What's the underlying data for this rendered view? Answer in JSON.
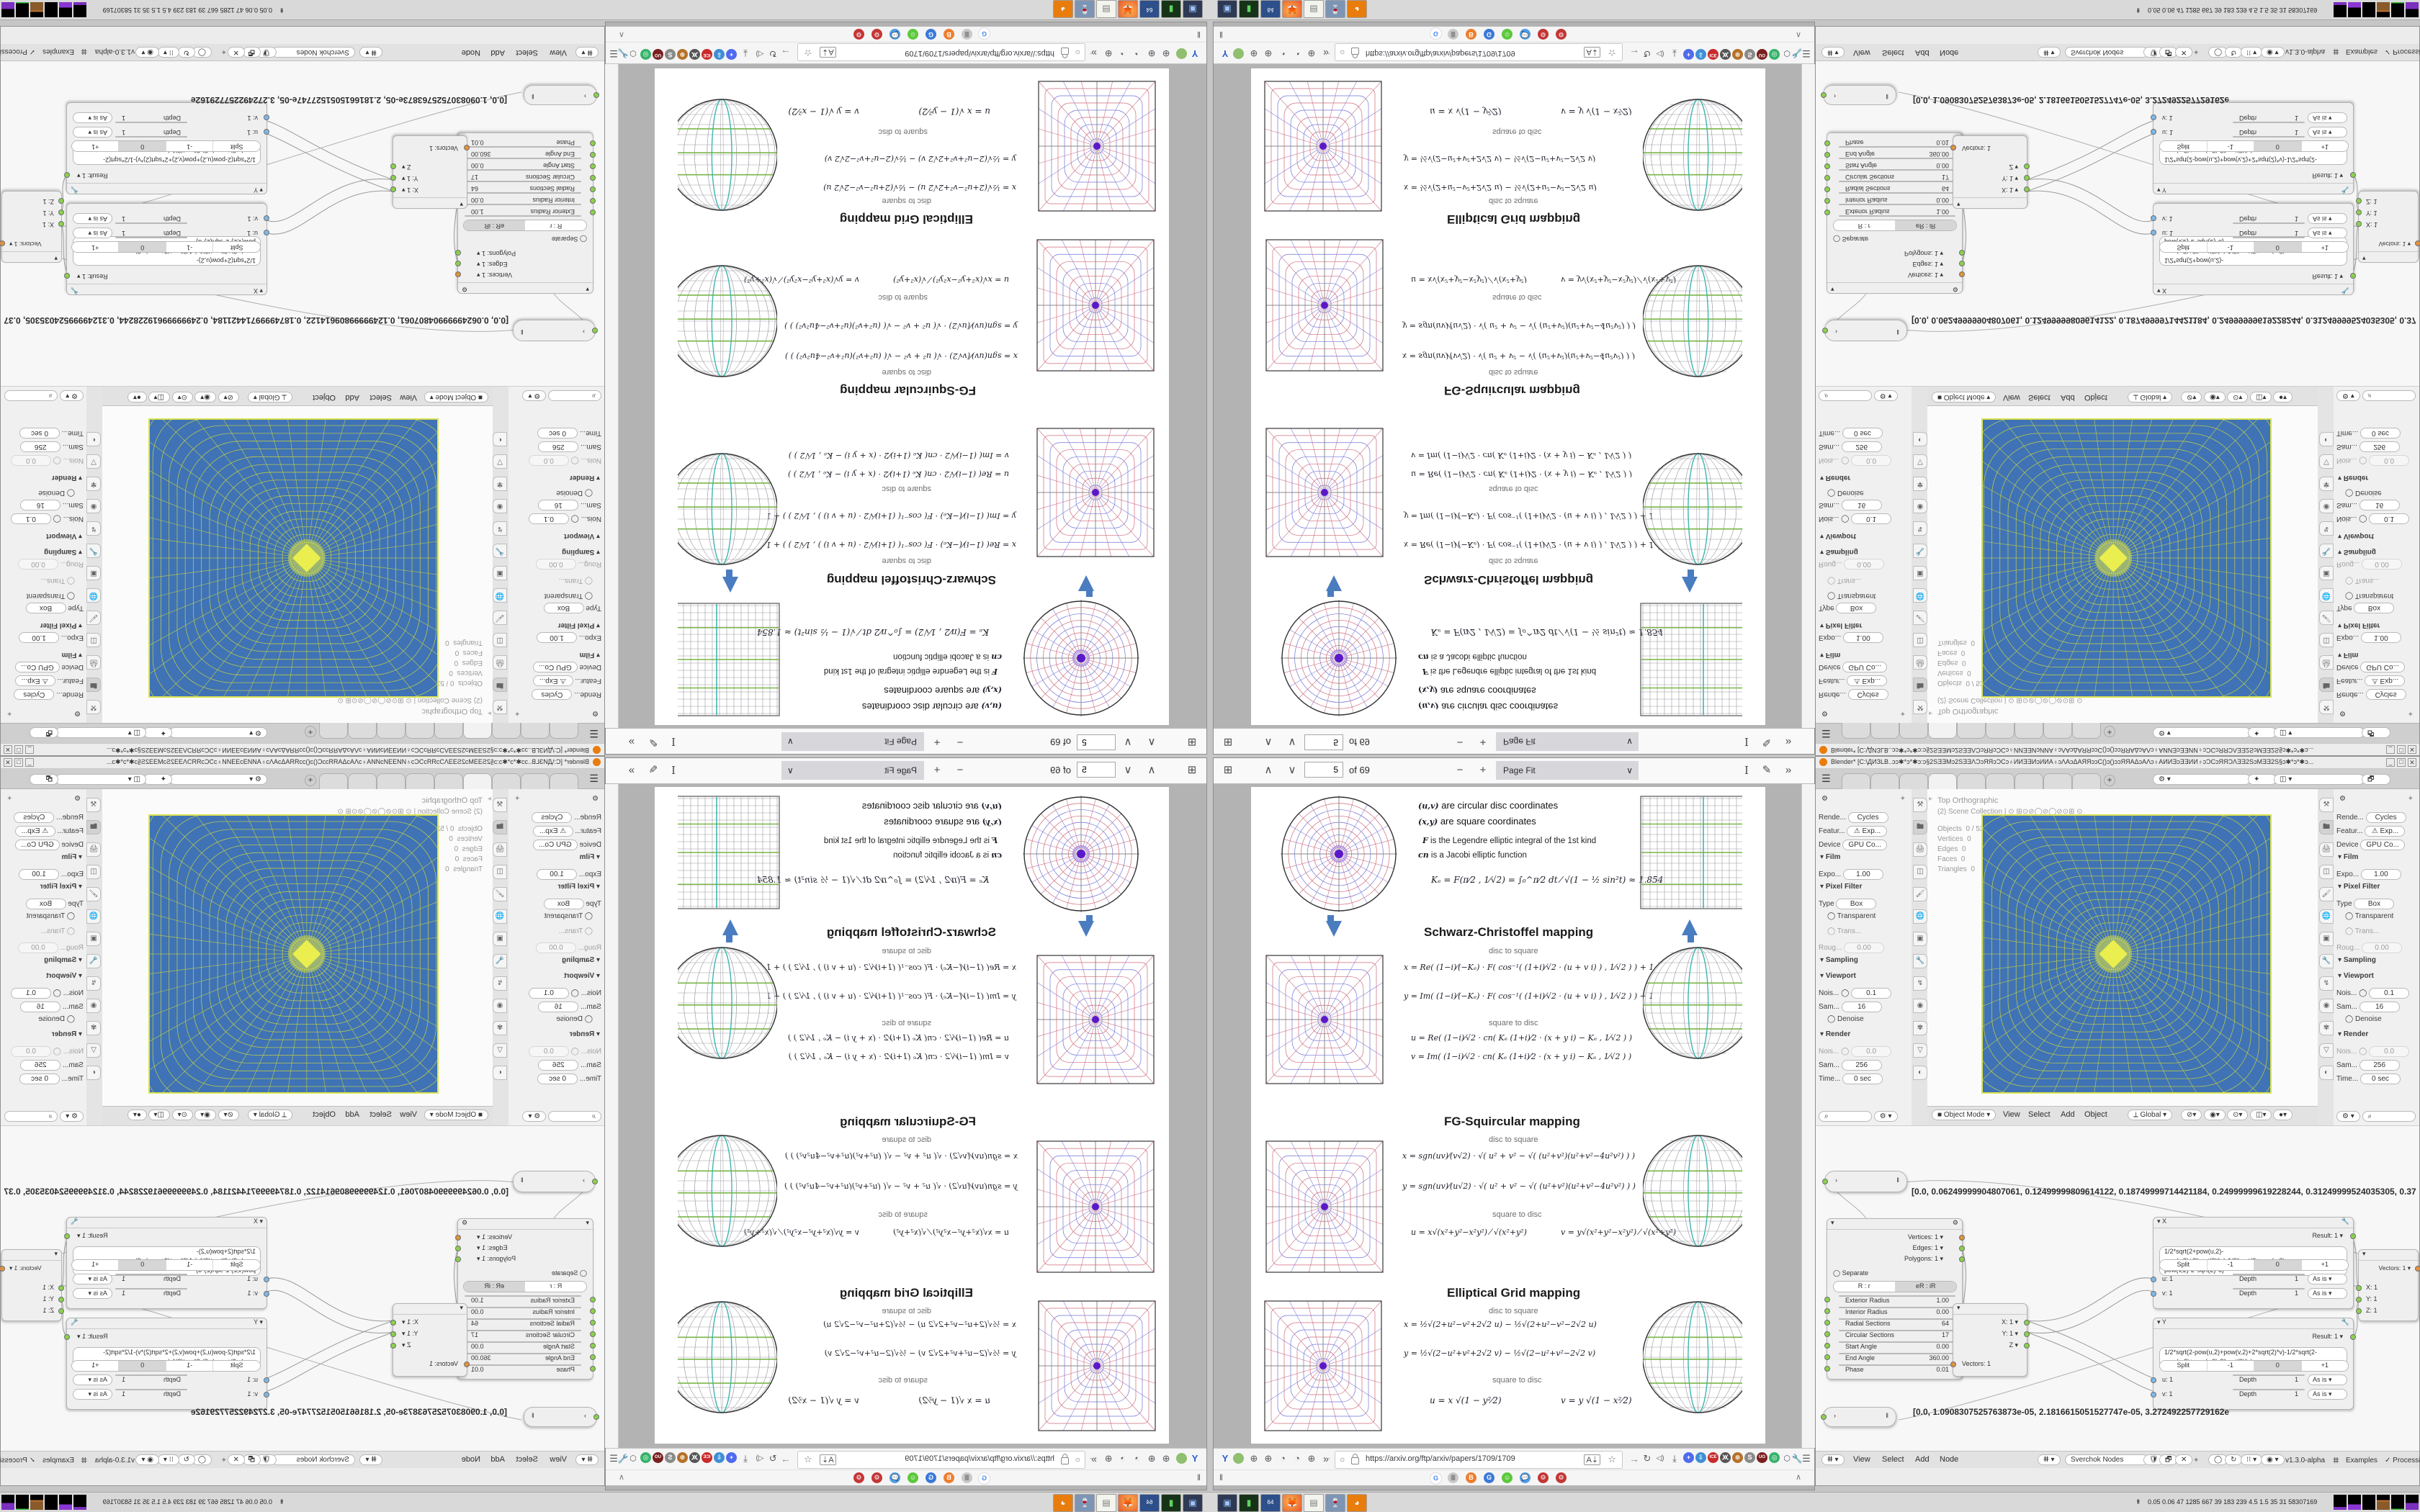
{
  "glyphs": {
    "chev_up": "∧",
    "chev_down": "∨",
    "chev_sm": "▾",
    "minus": "−",
    "plus": "+",
    "dbl_right": "»",
    "back": "←",
    "fwd": "→",
    "reload": "↻",
    "menu": "☰",
    "pause": "‖",
    "play": "›",
    "check": "✓",
    "close": "✕",
    "pin": "✦",
    "gear": "⚙",
    "collapse": "▾",
    "expand": "▸",
    "sidebar": "⊞",
    "cursor": "I",
    "pencil": "✎",
    "speaker": "◁)",
    "down": "⤓",
    "star": "☆",
    "shield": "○",
    "up_small": "∧"
  },
  "pdf": {
    "toolbar": {
      "page_value": "5",
      "of_label": "of 69",
      "zoom_value": "Page Fit"
    },
    "intro": {
      "b1": "(u,v)",
      "t1": " are circular disc coordinates",
      "b2": "(x,y)",
      "t2": " are square coordinates",
      "b3": "F",
      "t3": " is the Legendre elliptic integral of the 1st kind",
      "b4": "cn",
      "t4": " is a Jacobi elliptic function",
      "ke": "Kₑ =  F(π⁄2 , 1⁄√2) = ∫₀^π⁄2  dt ⁄ √(1 − ½ sin²t)   ≈ 1.854"
    },
    "sections": {
      "s1": {
        "title": "Schwarz-Christoffel mapping",
        "sub1": "disc to square",
        "f1": "x = Re( (1−i)⁄(−Kₑ) · F( cos⁻¹( (1+i)⁄√2 · (u + v i) ) , 1⁄√2 ) ) + 1",
        "f2": "y = Im( (1−i)⁄(−Kₑ) · F( cos⁻¹( (1+i)⁄√2 · (u + v i) ) , 1⁄√2 ) ) − 1",
        "sub2": "square to disc",
        "f3": "u = Re( (1−i)⁄√2 · cn( Kₑ (1+i)⁄2 · (x + y i) − Kₑ , 1⁄√2 ) )",
        "f4": "v = Im( (1−i)⁄√2 · cn( Kₑ (1+i)⁄2 · (x + y i) − Kₑ , 1⁄√2 ) )"
      },
      "s2": {
        "title": "FG-Squircular mapping",
        "sub1": "disc to square",
        "f1": "x = sgn(uv)⁄(v√2) · √( u² + v² − √( (u²+v²)(u²+v²−4u²v²) ) )",
        "f2": "y = sgn(uv)⁄(u√2) · √( u² + v² − √( (u²+v²)(u²+v²−4u²v²) ) )",
        "sub2": "square to disc",
        "f3": "u = x√(x²+y²−x²y²) ⁄ √(x²+y²)",
        "f4": "v = y√(x²+y²−x²y²) ⁄ √(x²+y²)"
      },
      "s3": {
        "title": "Elliptical Grid mapping",
        "sub1": "disc to square",
        "f1": "x = ½√(2+u²−v²+2√2 u)  −  ½√(2+u²−v²−2√2 u)",
        "f2": "y = ½√(2−u²+v²+2√2 v)  −  ½√(2−u²+v²−2√2 v)",
        "sub2": "square to disc",
        "f3": "u = x √(1 − y²⁄2)",
        "f4": "v = y √(1 − x²⁄2)"
      }
    },
    "nav": {
      "url": "https://arxiv.org/ftp/arxiv/papers/1709/1709"
    }
  },
  "blender": {
    "title": "Blender* [C:\\ДИЗLB..ɔɔ✱*ɔ*✱ɔ:ɔ§2SƎƎMɔ2SƎƎΛƆɔЯЯɔƆϹɔ♁ИИƎƎИɔИИΑ♁ɔΛΑɔΔΑЯЯɔɔϹ()ɔ()ɔɔЯЯΑΔɔΑΛɔ♁ΑИИƎɔƎƎИИ♁ɔƆϹɔЯЯϽΛƎƎ2SɔΜƎƎ2S§ɔ✱*ɔ*✱ɔ...",
    "props": {
      "engine_l": "Rende...",
      "engine_v": "Cycles",
      "feature_l": "Featur...",
      "feature_v": "⚠ Exp...",
      "device_l": "Device",
      "device_v": "GPU Co...",
      "film": "Film",
      "expo_l": "Expo...",
      "expo_v": "1.00",
      "pixfilter": "Pixel Filter",
      "type_l": "Type",
      "type_v": "Box",
      "transparent": "Transparent",
      "trans_l": "Trans...",
      "rough_l": "Roug...",
      "rough_v": "0.00",
      "sampling": "Sampling",
      "viewport": "Viewport",
      "noise_l": "Nois...",
      "noise_v": "0.1",
      "samples_l": "Sam...",
      "samples_v": "16",
      "denoise": "Denoise",
      "render": "Render",
      "noise2_v": "0.0",
      "samples2_v": "256",
      "time_l": "Time...",
      "time_v": "0 sec"
    },
    "viewport": {
      "view": "Top Orthographic",
      "coll": "(2) Scene Collection | ⊙ ⊞⊙⊘◯⊘◯⊘⊙⊞ ⊙",
      "st1l": "Objects",
      "st1v": "0 / 53",
      "st2l": "Vertices",
      "st2v": "0",
      "st3l": "Edges",
      "st3v": "0",
      "st4l": "Faces",
      "st4v": "0",
      "st5l": "Triangles",
      "st5v": "0",
      "mode": "Object Mode",
      "m1": "View",
      "m2": "Select",
      "m3": "Add",
      "m4": "Object",
      "orient": "Global"
    },
    "nodes": {
      "steth1": "[0.0, 0.06249999904807061, 0.12499999809614122, 0.18749999714421184, 0.24999999619228244, 0.31249999524035305, 0.374",
      "steth2": "[0.0, 1.0908307525763873e-05, 2.1816615051527747e-05, 3.272492257729162e",
      "circle": {
        "out1": "Vertices: 1",
        "out2": "Edges: 1",
        "out3": "Polygons: 1",
        "sep": "Separate",
        "seg1": "R : r",
        "seg2": "eR : iR",
        "s1l": "Exterior Radius",
        "s1v": "1.00",
        "s2l": "Interior Radius",
        "s2v": "0.00",
        "s3l": "Radial Sections",
        "s3v": "64",
        "s4l": "Circular Sections",
        "s4v": "17",
        "s5l": "Start Angle",
        "s5v": "0.00",
        "s6l": "End Angle",
        "s6v": "360.00",
        "s7l": "Phase",
        "s7v": "0.01"
      },
      "vecout": {
        "r1": "X: 1",
        "r2": "Y: 1",
        "r3": "Z",
        "in1": "Vectors: 1"
      },
      "xnode": {
        "name": "X",
        "result": "Result: 1",
        "formula": "1/2*sqrt(2+pow(u,2)-pow(v,2)+2*sqrt(2)*u)-1/2*sqrt(2+pow(u,2)-pow(v,2)-2*sqrt(2)*u)",
        "b1": "Split",
        "b2": "-1",
        "b3": "0",
        "b4": "+1",
        "u": "u: 1",
        "v": "v: 1",
        "depth": "Depth",
        "one": "1",
        "asis": "As is"
      },
      "ynode": {
        "name": "Y",
        "result": "Result: 1",
        "formula": "1/2*sqrt(2-pow(u,2)+pow(v,2)+2*sqrt(2)*v)-1/2*sqrt(2-pow(u,2)+pow(v,2)-2*sqrt(2)*v)",
        "b1": "Split",
        "b2": "-1",
        "b3": "0",
        "b4": "+1",
        "u": "u: 1",
        "v": "v: 1",
        "depth": "Depth",
        "one": "1",
        "asis": "As is"
      },
      "vecin": {
        "out": "Vectors: 1",
        "r1": "X: 1",
        "r2": "Y: 1",
        "r3": "Z: 1"
      }
    },
    "nheader": {
      "m1": "View",
      "m2": "Select",
      "m3": "Add",
      "m4": "Node",
      "tree": "Sverchok Nodes",
      "version": "v1.3.0-alpha",
      "examples": "Examples",
      "processing": "Processing"
    }
  },
  "taskbar": {
    "stats": "0.05 0.06   47   1285 667   39   183  239   4.5   1.5   35   31  58307169"
  }
}
